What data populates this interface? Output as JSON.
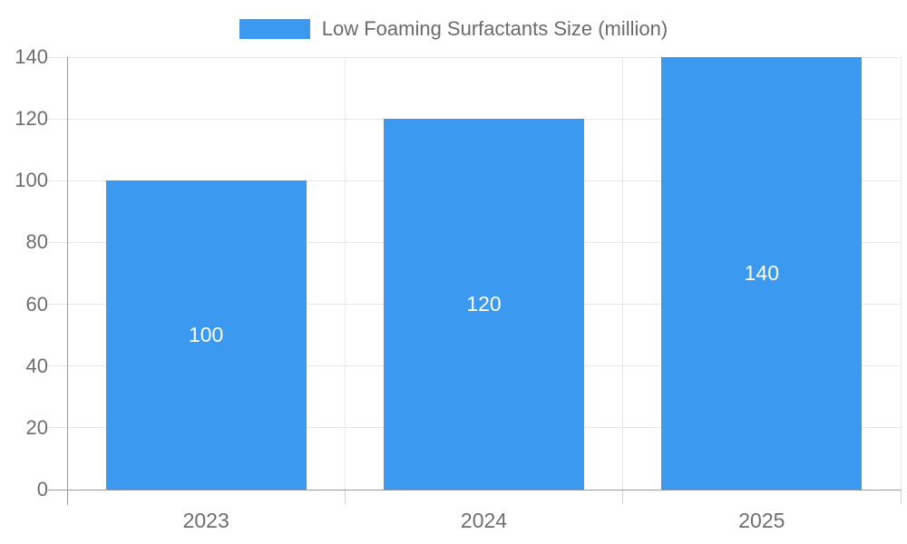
{
  "legend": {
    "label": "Low Foaming Surfactants Size (million)"
  },
  "chart_data": {
    "type": "bar",
    "title": "",
    "categories": [
      "2023",
      "2024",
      "2025"
    ],
    "values": [
      100,
      120,
      140
    ],
    "series_name": "Low Foaming Surfactants Size (million)",
    "xlabel": "",
    "ylabel": "",
    "ylim": [
      0,
      140
    ],
    "yticks": [
      0,
      20,
      40,
      60,
      80,
      100,
      120,
      140
    ],
    "grid": "on",
    "legend_position": "top-center",
    "data_labels": [
      "100",
      "120",
      "140"
    ],
    "colors": {
      "bar": "#3b99ef",
      "data_label": "#ffffff",
      "gridline": "#e6e6e6",
      "axis_line": "#9a9a9a",
      "minor_tick": "#cfcfcf",
      "tick_label": "#6e6e6e",
      "legend_text": "#6b6b6b",
      "background": "#ffffff"
    }
  }
}
